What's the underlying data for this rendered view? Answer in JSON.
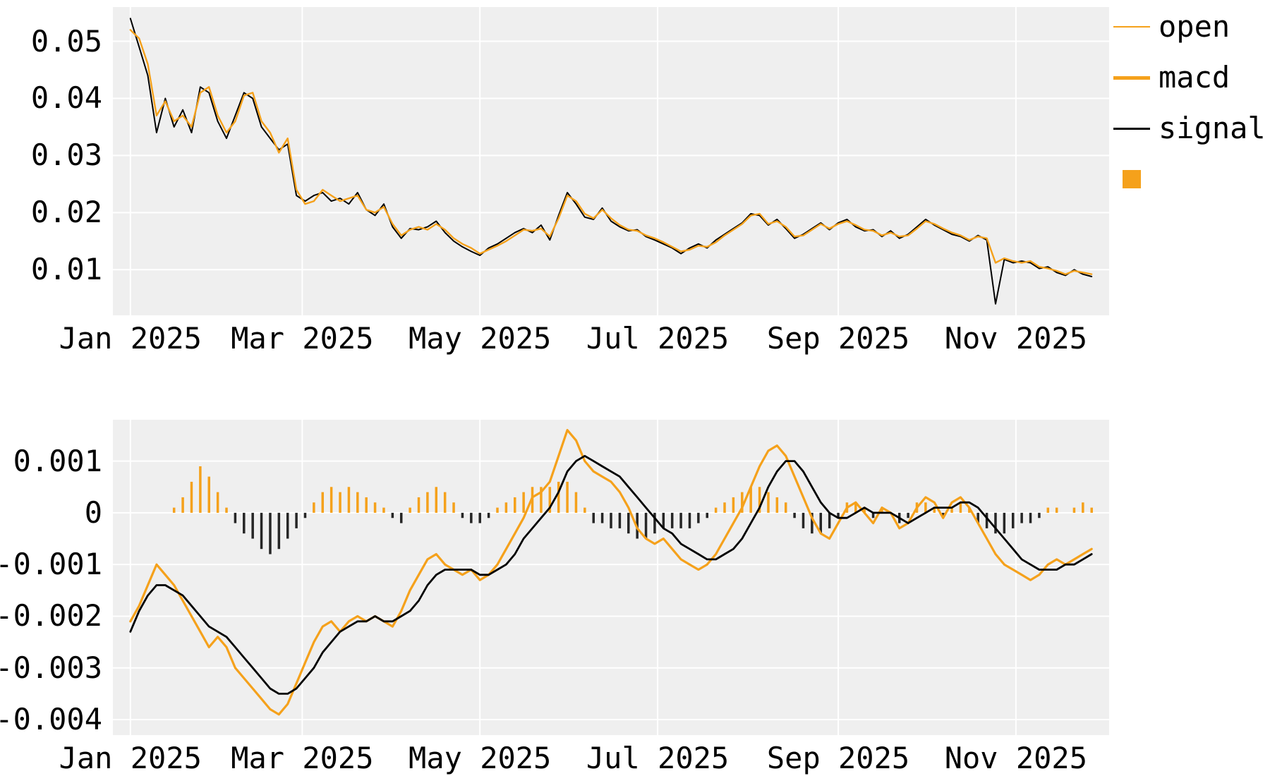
{
  "style": {
    "orange": "#F5A11B",
    "black": "#000000",
    "hist_negative": "#262626",
    "plot_bg": "#EFEFEF",
    "grid": "#FFFFFF",
    "text": "#000000",
    "page_bg": "#FFFFFF"
  },
  "legend": {
    "items": [
      {
        "label": "open",
        "marker": "line",
        "color": "#F5A11B"
      },
      {
        "label": "macd",
        "marker": "line",
        "color": "#F5A11B"
      },
      {
        "label": "signal",
        "marker": "line",
        "color": "#000000"
      },
      {
        "label": "",
        "marker": "square",
        "color": "#F5A11B"
      }
    ]
  },
  "chart_data": [
    {
      "name": "price",
      "type": "line",
      "x_unit": "day-of-2025",
      "x_start": 0,
      "x_step": 3,
      "xlim": [
        -6,
        336
      ],
      "ylim": [
        0.002,
        0.056
      ],
      "grid": true,
      "x_ticks": {
        "labels": [
          "Jan 2025",
          "Mar 2025",
          "May 2025",
          "Jul 2025",
          "Sep 2025",
          "Nov 2025"
        ],
        "days": [
          0,
          59,
          120,
          181,
          243,
          304
        ]
      },
      "y_ticks": [
        {
          "value": 0.05,
          "label": "0.05"
        },
        {
          "value": 0.04,
          "label": "0.04"
        },
        {
          "value": 0.03,
          "label": "0.03"
        },
        {
          "value": 0.02,
          "label": "0.02"
        },
        {
          "value": 0.01,
          "label": "0.01"
        }
      ],
      "series": [
        {
          "name": "price-black-overlay",
          "color": "#000000",
          "stroke_width": 2,
          "values": [
            0.054,
            0.049,
            0.044,
            0.034,
            0.04,
            0.035,
            0.038,
            0.034,
            0.042,
            0.041,
            0.036,
            0.033,
            0.037,
            0.041,
            0.04,
            0.035,
            0.033,
            0.031,
            0.032,
            0.023,
            0.022,
            0.023,
            0.0235,
            0.022,
            0.0225,
            0.0215,
            0.0235,
            0.0205,
            0.0195,
            0.0215,
            0.0175,
            0.0155,
            0.0172,
            0.017,
            0.0175,
            0.0185,
            0.0165,
            0.015,
            0.014,
            0.0132,
            0.0125,
            0.0138,
            0.0145,
            0.0155,
            0.0165,
            0.0172,
            0.0165,
            0.0178,
            0.0152,
            0.0195,
            0.0235,
            0.0215,
            0.0192,
            0.0188,
            0.0208,
            0.0185,
            0.0175,
            0.0168,
            0.017,
            0.0158,
            0.0152,
            0.0145,
            0.0138,
            0.0128,
            0.0138,
            0.0145,
            0.0138,
            0.0152,
            0.0162,
            0.0172,
            0.0182,
            0.0198,
            0.0195,
            0.0178,
            0.0188,
            0.0172,
            0.0155,
            0.0162,
            0.0172,
            0.0182,
            0.017,
            0.0182,
            0.0188,
            0.0175,
            0.0168,
            0.017,
            0.0158,
            0.0168,
            0.0155,
            0.0162,
            0.0175,
            0.0188,
            0.0178,
            0.017,
            0.0162,
            0.0158,
            0.015,
            0.016,
            0.0152,
            0.004,
            0.0118,
            0.0112,
            0.0115,
            0.0112,
            0.0102,
            0.0105,
            0.0095,
            0.009,
            0.01,
            0.0092,
            0.0088
          ]
        },
        {
          "name": "open",
          "color": "#F5A11B",
          "stroke_width": 2.4,
          "values": [
            0.052,
            0.0505,
            0.046,
            0.037,
            0.0395,
            0.036,
            0.037,
            0.035,
            0.041,
            0.042,
            0.037,
            0.034,
            0.036,
            0.0405,
            0.041,
            0.036,
            0.034,
            0.0305,
            0.033,
            0.024,
            0.0215,
            0.022,
            0.024,
            0.023,
            0.022,
            0.0225,
            0.023,
            0.0205,
            0.02,
            0.021,
            0.018,
            0.016,
            0.017,
            0.0175,
            0.017,
            0.018,
            0.017,
            0.0155,
            0.0145,
            0.0138,
            0.0128,
            0.0135,
            0.0142,
            0.015,
            0.016,
            0.017,
            0.0168,
            0.0172,
            0.0158,
            0.019,
            0.023,
            0.022,
            0.0198,
            0.019,
            0.0205,
            0.019,
            0.0178,
            0.017,
            0.0168,
            0.016,
            0.0155,
            0.0148,
            0.014,
            0.0132,
            0.0135,
            0.0142,
            0.014,
            0.0148,
            0.016,
            0.017,
            0.018,
            0.0195,
            0.0198,
            0.018,
            0.0185,
            0.0175,
            0.0158,
            0.016,
            0.017,
            0.018,
            0.0172,
            0.018,
            0.0185,
            0.0178,
            0.017,
            0.0168,
            0.016,
            0.0165,
            0.0158,
            0.016,
            0.0172,
            0.0185,
            0.018,
            0.0172,
            0.0165,
            0.016,
            0.0152,
            0.0158,
            0.0155,
            0.0112,
            0.012,
            0.0115,
            0.0112,
            0.0115,
            0.0105,
            0.0102,
            0.0098,
            0.0092,
            0.0098,
            0.0095,
            0.0092
          ]
        }
      ]
    },
    {
      "name": "macd",
      "type": "line+bar",
      "x_unit": "day-of-2025",
      "x_start": 0,
      "x_step": 3,
      "xlim": [
        -6,
        336
      ],
      "ylim": [
        -0.0043,
        0.0018
      ],
      "grid": true,
      "x_ticks": {
        "labels": [
          "Jan 2025",
          "Mar 2025",
          "May 2025",
          "Jul 2025",
          "Sep 2025",
          "Nov 2025"
        ],
        "days": [
          0,
          59,
          120,
          181,
          243,
          304
        ]
      },
      "y_ticks": [
        {
          "value": 0.001,
          "label": "0.001"
        },
        {
          "value": 0,
          "label": "0"
        },
        {
          "value": -0.001,
          "label": "-0.001"
        },
        {
          "value": -0.002,
          "label": "-0.002"
        },
        {
          "value": -0.003,
          "label": "-0.003"
        },
        {
          "value": -0.004,
          "label": "-0.004"
        }
      ],
      "histogram": {
        "name": "macd-histogram",
        "positive_color": "#F5A11B",
        "negative_color": "#262626",
        "values": [
          0,
          0,
          0,
          0,
          0,
          0.0001,
          0.0003,
          0.0006,
          0.0009,
          0.0007,
          0.0004,
          0.0001,
          -0.0002,
          -0.0004,
          -0.0005,
          -0.0007,
          -0.0008,
          -0.0007,
          -0.0005,
          -0.0003,
          -0.0001,
          0.0002,
          0.0004,
          0.0005,
          0.0004,
          0.0005,
          0.0004,
          0.0003,
          0.0002,
          0.0001,
          -0.0001,
          -0.0002,
          0.0001,
          0.0003,
          0.0004,
          0.0005,
          0.0004,
          0.0002,
          -0.0001,
          -0.0002,
          -0.0002,
          -0.0001,
          0.0001,
          0.0002,
          0.0003,
          0.0004,
          0.0005,
          0.0005,
          0.0005,
          0.0006,
          0.0006,
          0.0004,
          0.0001,
          -0.0002,
          -0.0002,
          -0.0003,
          -0.0003,
          -0.0004,
          -0.0005,
          -0.0005,
          -0.0004,
          -0.0003,
          -0.0003,
          -0.0003,
          -0.0003,
          -0.0002,
          -0.0001,
          0.0001,
          0.0002,
          0.0003,
          0.0004,
          0.0005,
          0.0005,
          0.0004,
          0.0003,
          0.0002,
          -0.0001,
          -0.0003,
          -0.0004,
          -0.0004,
          -0.0003,
          -0.0001,
          0.0002,
          0.0002,
          0.0001,
          -0.0001,
          0.0001,
          0,
          -0.0002,
          -0.0001,
          0.0002,
          0.0002,
          0.0001,
          -0.0001,
          0.0001,
          0.0002,
          0.0001,
          -0.0002,
          -0.0003,
          -0.0004,
          -0.0004,
          -0.0003,
          -0.0002,
          -0.0002,
          -0.0001,
          0.0001,
          0.0001,
          0,
          0.0001,
          0.0002,
          0.0001
        ]
      },
      "series": [
        {
          "name": "macd",
          "color": "#F5A11B",
          "stroke_width": 3.2,
          "values": [
            -0.0021,
            -0.0018,
            -0.0014,
            -0.001,
            -0.0012,
            -0.0014,
            -0.0017,
            -0.002,
            -0.0023,
            -0.0026,
            -0.0024,
            -0.0026,
            -0.003,
            -0.0032,
            -0.0034,
            -0.0036,
            -0.0038,
            -0.0039,
            -0.0037,
            -0.0033,
            -0.0029,
            -0.0025,
            -0.0022,
            -0.0021,
            -0.0023,
            -0.0021,
            -0.002,
            -0.0021,
            -0.002,
            -0.0021,
            -0.0022,
            -0.0019,
            -0.0015,
            -0.0012,
            -0.0009,
            -0.0008,
            -0.001,
            -0.0011,
            -0.0012,
            -0.0011,
            -0.0013,
            -0.0012,
            -0.001,
            -0.0007,
            -0.0004,
            -0.0001,
            0.0003,
            0.0004,
            0.0006,
            0.0011,
            0.0016,
            0.0014,
            0.001,
            0.0008,
            0.0007,
            0.0006,
            0.0004,
            0.0001,
            -0.0003,
            -0.0005,
            -0.0006,
            -0.0005,
            -0.0007,
            -0.0009,
            -0.001,
            -0.0011,
            -0.001,
            -0.0008,
            -0.0005,
            -0.0002,
            0.0001,
            0.0005,
            0.0009,
            0.0012,
            0.0013,
            0.0011,
            0.0007,
            0.0003,
            -0.0001,
            -0.0004,
            -0.0005,
            -0.0002,
            0.0001,
            0.0002,
            0,
            -0.0002,
            0.0001,
            0,
            -0.0003,
            -0.0002,
            0.0001,
            0.0003,
            0.0002,
            -0.0001,
            0.0002,
            0.0003,
            0.0001,
            -0.0002,
            -0.0005,
            -0.0008,
            -0.001,
            -0.0011,
            -0.0012,
            -0.0013,
            -0.0012,
            -0.001,
            -0.0009,
            -0.001,
            -0.0009,
            -0.0008,
            -0.0007
          ]
        },
        {
          "name": "signal",
          "color": "#000000",
          "stroke_width": 2.8,
          "values": [
            -0.0023,
            -0.0019,
            -0.0016,
            -0.0014,
            -0.0014,
            -0.0015,
            -0.0016,
            -0.0018,
            -0.002,
            -0.0022,
            -0.0023,
            -0.0024,
            -0.0026,
            -0.0028,
            -0.003,
            -0.0032,
            -0.0034,
            -0.0035,
            -0.0035,
            -0.0034,
            -0.0032,
            -0.003,
            -0.0027,
            -0.0025,
            -0.0023,
            -0.0022,
            -0.0021,
            -0.0021,
            -0.002,
            -0.0021,
            -0.0021,
            -0.002,
            -0.0019,
            -0.0017,
            -0.0014,
            -0.0012,
            -0.0011,
            -0.0011,
            -0.0011,
            -0.0011,
            -0.0012,
            -0.0012,
            -0.0011,
            -0.001,
            -0.0008,
            -0.0005,
            -0.0003,
            -0.0001,
            0.0001,
            0.0004,
            0.0008,
            0.001,
            0.0011,
            0.001,
            0.0009,
            0.0008,
            0.0007,
            0.0005,
            0.0003,
            0.0001,
            -0.0001,
            -0.0003,
            -0.0004,
            -0.0006,
            -0.0007,
            -0.0008,
            -0.0009,
            -0.0009,
            -0.0008,
            -0.0007,
            -0.0005,
            -0.0002,
            0.0001,
            0.0005,
            0.0008,
            0.001,
            0.001,
            0.0008,
            0.0005,
            0.0002,
            0,
            -0.0001,
            -0.0001,
            0,
            0.0001,
            0,
            0,
            0,
            -0.0001,
            -0.0002,
            -0.0001,
            0,
            0.0001,
            0.0001,
            0.0001,
            0.0002,
            0.0002,
            0.0001,
            -0.0001,
            -0.0003,
            -0.0005,
            -0.0007,
            -0.0009,
            -0.001,
            -0.0011,
            -0.0011,
            -0.0011,
            -0.001,
            -0.001,
            -0.0009,
            -0.0008
          ]
        }
      ]
    }
  ]
}
